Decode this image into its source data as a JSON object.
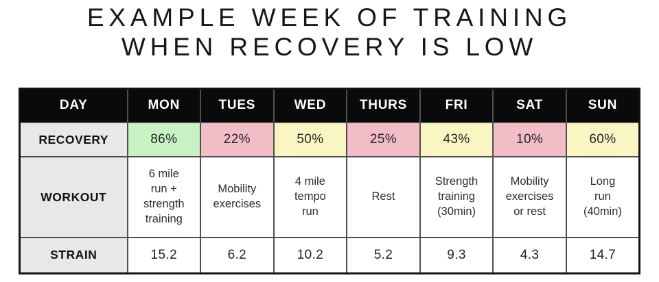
{
  "title": {
    "line1": "EXAMPLE WEEK OF TRAINING",
    "line2": "WHEN RECOVERY IS LOW"
  },
  "chart_data": {
    "type": "table",
    "title": "EXAMPLE WEEK OF TRAINING WHEN RECOVERY IS LOW",
    "columns": [
      "DAY",
      "MON",
      "TUES",
      "WED",
      "THURS",
      "FRI",
      "SAT",
      "SUN"
    ],
    "rows": [
      {
        "label": "RECOVERY",
        "values": [
          "86%",
          "22%",
          "50%",
          "25%",
          "43%",
          "10%",
          "60%"
        ],
        "cell_colors": [
          "#c8f2c3",
          "#f3bdc8",
          "#faf6c4",
          "#f3bdc8",
          "#faf6c4",
          "#f3bdc8",
          "#faf6c4"
        ],
        "recovery_levels": [
          "high",
          "low",
          "medium",
          "low",
          "medium",
          "low",
          "medium"
        ]
      },
      {
        "label": "WORKOUT",
        "values": [
          "6 mile\nrun +\nstrength\ntraining",
          "Mobility\nexercises",
          "4 mile\ntempo\nrun",
          "Rest",
          "Strength\ntraining\n(30min)",
          "Mobility\nexercises\nor rest",
          "Long\nrun\n(40min)"
        ]
      },
      {
        "label": "STRAIN",
        "values": [
          15.2,
          6.2,
          10.2,
          5.2,
          9.3,
          4.3,
          14.7
        ]
      }
    ]
  },
  "colors": {
    "recovery_high": "#c8f2c3",
    "recovery_medium": "#faf6c4",
    "recovery_low": "#f3bdc8",
    "header_bg": "#0a0a0a",
    "header_text": "#ffffff",
    "label_bg": "#e8e8e9",
    "border": "#4f4f4f"
  }
}
